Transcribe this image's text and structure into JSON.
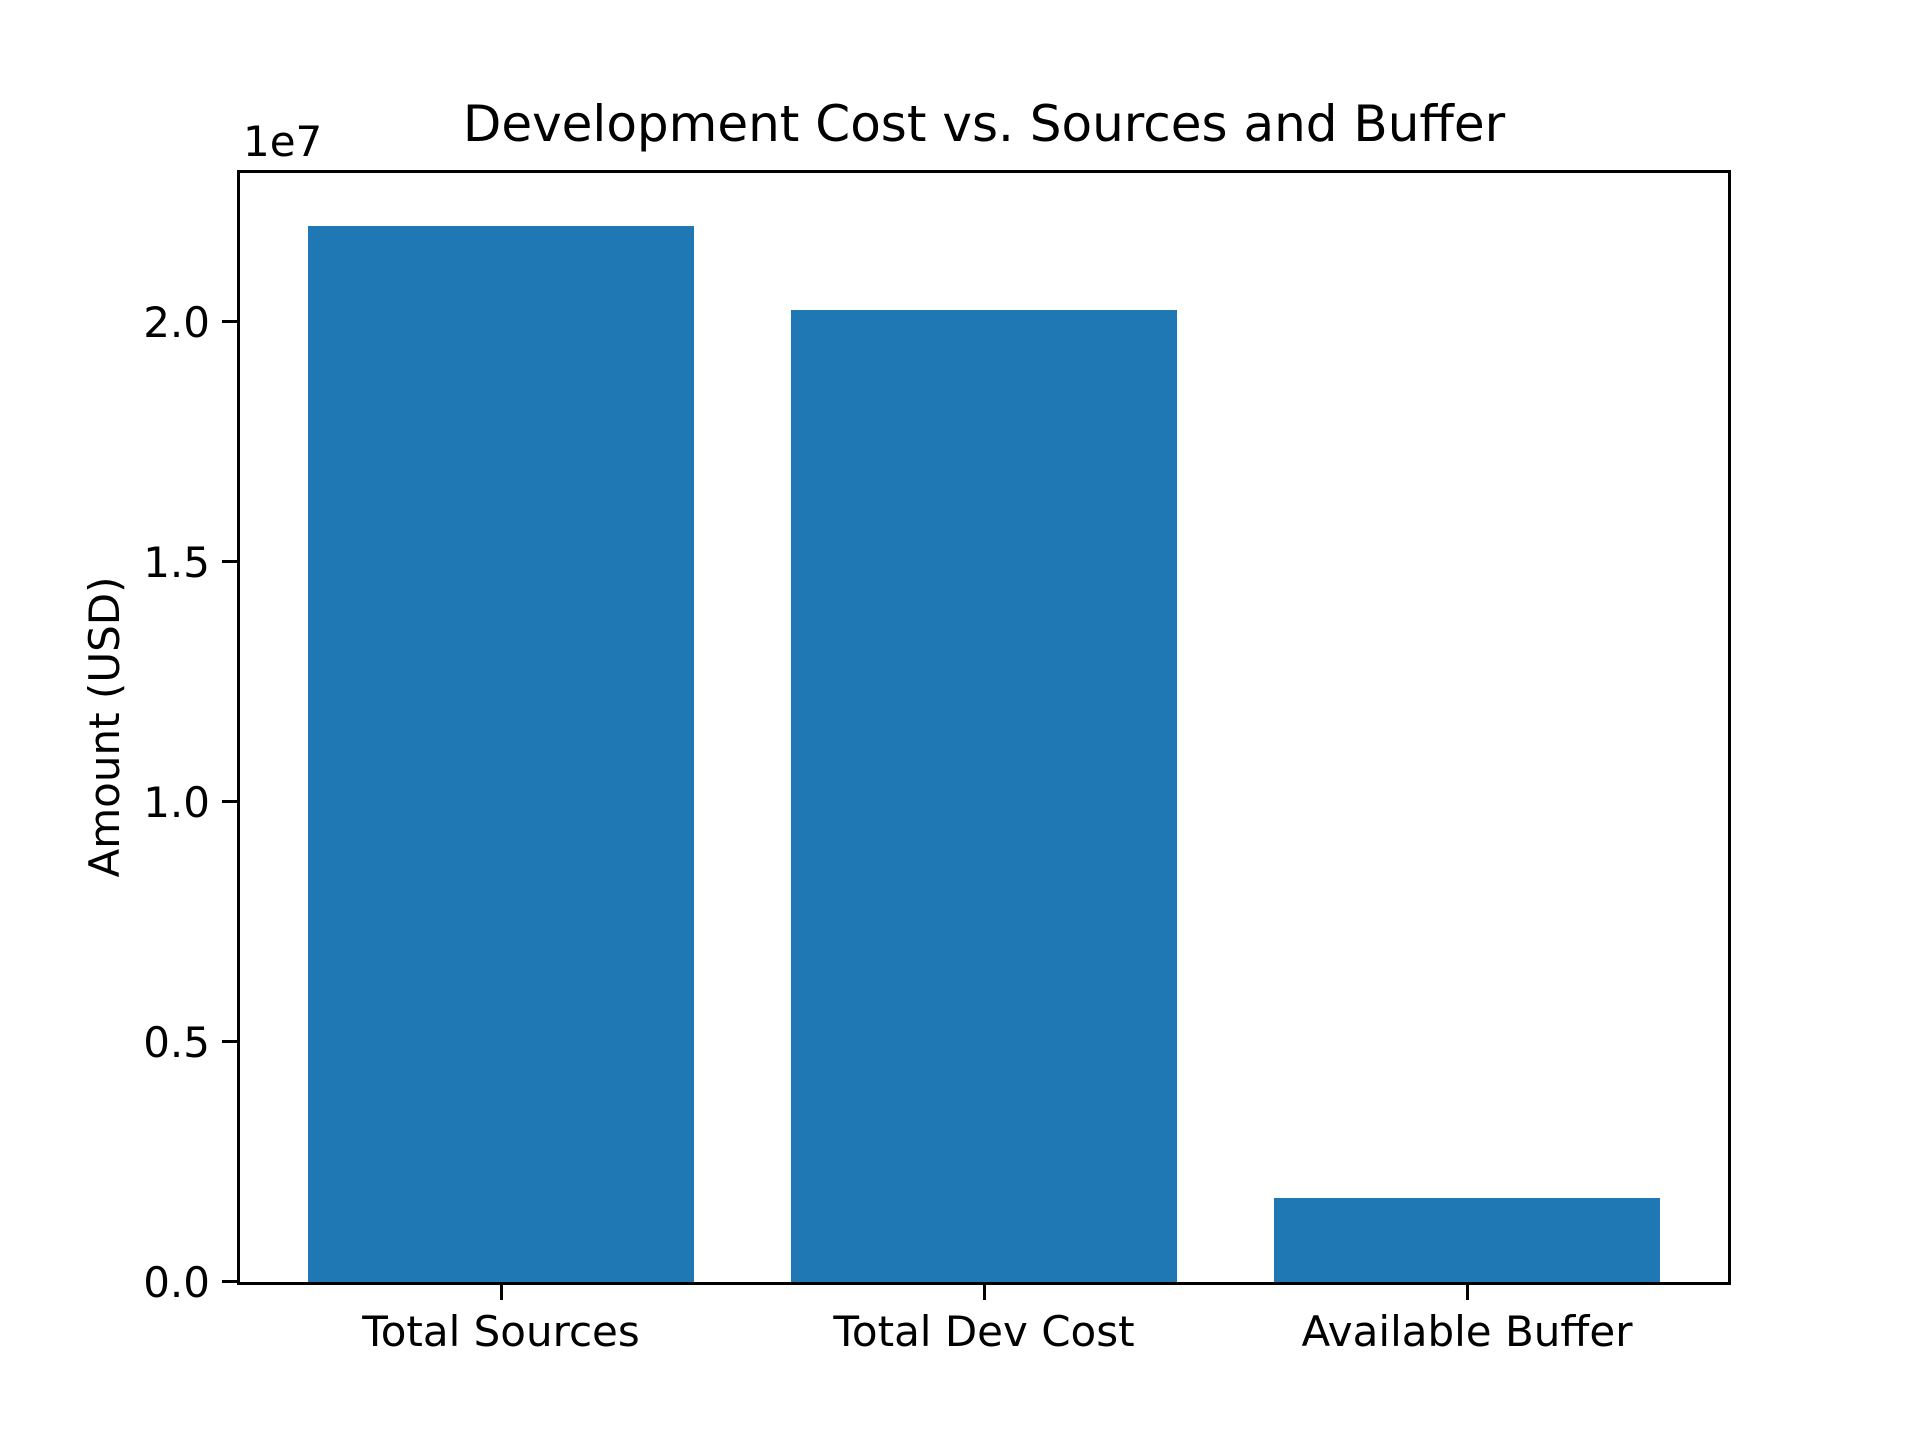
{
  "chart_data": {
    "type": "bar",
    "title": "Development Cost vs. Sources and Buffer",
    "categories": [
      "Total Sources",
      "Total Dev Cost",
      "Available Buffer"
    ],
    "values": [
      22000000,
      20250000,
      1750000
    ],
    "xlabel": "",
    "ylabel": "Amount (USD)",
    "y_offset_label": "1e7",
    "ylim": [
      0,
      23100000
    ],
    "ytick_values": [
      0,
      5000000,
      10000000,
      15000000,
      20000000
    ],
    "ytick_labels": [
      "0.0",
      "0.5",
      "1.0",
      "1.5",
      "2.0"
    ],
    "bar_color": "#1f77b4",
    "axis_color": "#000000",
    "background_color": "#ffffff",
    "grid": false,
    "legend_position": "none"
  }
}
